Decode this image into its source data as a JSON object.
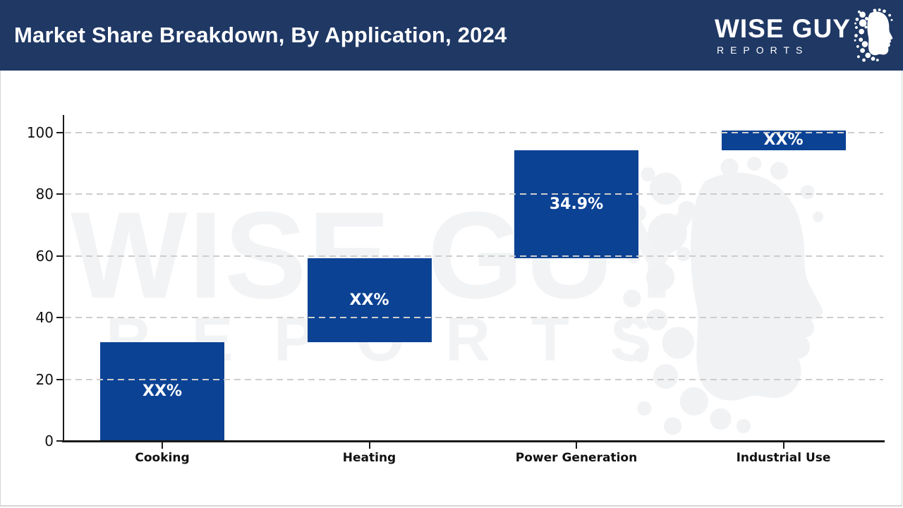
{
  "header": {
    "title": "Market Share Breakdown, By Application, 2024",
    "bg_color": "#1f3864",
    "logo": {
      "wordmark": "WISE GUY",
      "subtitle": "REPORTS"
    }
  },
  "watermark": {
    "wordmark": "WISE GUY",
    "subtitle": "REPORTS"
  },
  "chart_data": {
    "type": "bar",
    "subtype": "waterfall",
    "title": "Market Share Breakdown, By Application, 2024",
    "categories": [
      "Cooking",
      "Heating",
      "Power Generation",
      "Industrial Use"
    ],
    "segments": [
      {
        "category": "Cooking",
        "start": 0,
        "end": 32,
        "label": "XX%"
      },
      {
        "category": "Heating",
        "start": 32,
        "end": 59.2,
        "label": "XX%"
      },
      {
        "category": "Power Generation",
        "start": 59.2,
        "end": 94.1,
        "label": "34.9%"
      },
      {
        "category": "Industrial Use",
        "start": 94.1,
        "end": 100.5,
        "label": "XX%"
      }
    ],
    "ylim": [
      0,
      100
    ],
    "yticks": [
      0,
      20,
      40,
      60,
      80,
      100
    ],
    "ytick_labels": [
      "0",
      "20",
      "40",
      "60",
      "80",
      "100"
    ],
    "grid": "horizontal-dashed",
    "legend": "none",
    "colors": {
      "bar": "#0b4294",
      "bar_label": "#ffffff",
      "grid_line": "#cdcdcd",
      "axis": "#1a1a1a",
      "tick_label": "#111111",
      "watermark": "#f2f3f5",
      "header_bg": "#1f3864",
      "header_text": "#ffffff"
    }
  }
}
